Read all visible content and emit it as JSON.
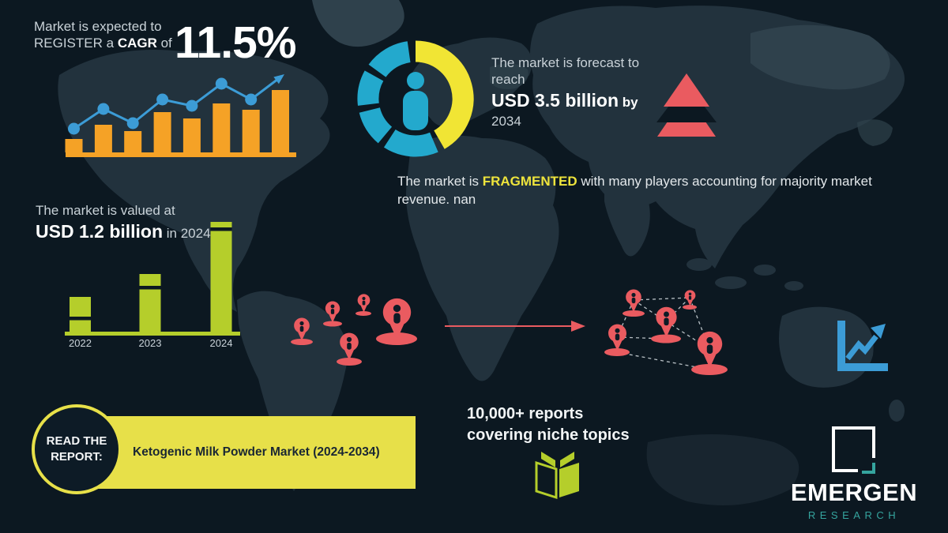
{
  "colors": {
    "background": "#0c1821",
    "map": "#22323d",
    "map_light": "#2f414c",
    "orange": "#f5a226",
    "blue": "#3c9cd6",
    "yellow": "#f1e534",
    "banner_yellow": "#e7e049",
    "cyan": "#23a9cd",
    "red": "#ea5b60",
    "green": "#b5ce2b",
    "teal": "#35a49e",
    "text_light": "#c9d2d8",
    "text_dark": "#1a2733",
    "white": "#ffffff"
  },
  "cagr": {
    "line1": "Market is expected to",
    "line2_pre": "REGISTER a ",
    "line2_bold": "CAGR",
    "line2_post": " of",
    "value": "11.5%"
  },
  "forecast": {
    "line1": "The market is forecast to",
    "line2": "reach",
    "value": "USD 3.5 billion",
    "by": " by",
    "year": "2034"
  },
  "fragmented": {
    "pre": "The market is ",
    "highlight": "FRAGMENTED",
    "post": " with many players accounting for majority market",
    "line2": "revenue. nan"
  },
  "valuation": {
    "line1": "The market is valued at",
    "value": "USD 1.2 billion",
    "suffix": " in 2024"
  },
  "reports": {
    "line1": "10,000+ reports",
    "line2": "covering niche topics"
  },
  "read_report": {
    "circle": "READ THE REPORT:",
    "banner": "Ketogenic Milk Powder Market (2024-2034)"
  },
  "logo": {
    "title": "EMERGEN",
    "subtitle": "RESEARCH"
  },
  "chart_data": [
    {
      "type": "bar",
      "name": "cagr-trend-chart",
      "units": "relative (chart is unlabeled, decorative growth trend)",
      "values": [
        17,
        35,
        27,
        51,
        43,
        62,
        54,
        79
      ],
      "series": [
        {
          "name": "trend-line-dots",
          "values": [
            30,
            55,
            37,
            67,
            59,
            87,
            67
          ]
        }
      ],
      "ylim": [
        0,
        100
      ],
      "grid": false
    },
    {
      "type": "pie",
      "name": "market-share-donut",
      "units": "degrees clockwise from 12 o'clock (unlabeled donut)",
      "segments": [
        {
          "label": "yellow-share",
          "start_deg": 0,
          "end_deg": 150
        },
        {
          "label": "cyan-share-1",
          "start_deg": 157,
          "end_deg": 213
        },
        {
          "label": "cyan-share-2",
          "start_deg": 220,
          "end_deg": 256
        },
        {
          "label": "cyan-share-3",
          "start_deg": 263,
          "end_deg": 299
        },
        {
          "label": "cyan-share-4",
          "start_deg": 306,
          "end_deg": 352
        }
      ]
    },
    {
      "type": "bar",
      "name": "valuation-bars",
      "categories": [
        "2022",
        "2023",
        "2024"
      ],
      "units": "relative (unlabeled y-axis)",
      "values": [
        44,
        73,
        139
      ],
      "stripe_offsets": [
        25,
        15,
        7
      ],
      "ylim": [
        0,
        150
      ],
      "grid": false
    }
  ]
}
